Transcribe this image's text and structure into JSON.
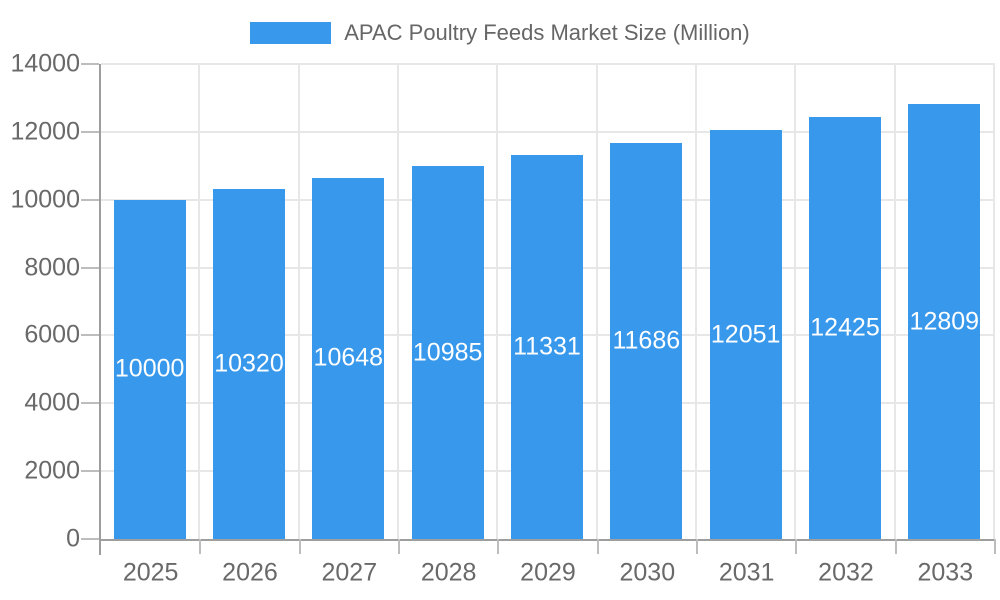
{
  "chart_data": {
    "type": "bar",
    "title": "APAC Poultry Feeds Market Size (Million)",
    "categories": [
      "2025",
      "2026",
      "2027",
      "2028",
      "2029",
      "2030",
      "2031",
      "2032",
      "2033"
    ],
    "series": [
      {
        "name": "APAC Poultry Feeds Market Size (Million)",
        "values": [
          10000,
          10320,
          10648,
          10985,
          11331,
          11686,
          12051,
          12425,
          12809
        ],
        "color": "#3898EC"
      }
    ],
    "xlabel": "",
    "ylabel": "",
    "ylim": [
      0,
      14000
    ],
    "yticks": [
      0,
      2000,
      4000,
      6000,
      8000,
      10000,
      12000,
      14000
    ],
    "grid": true,
    "legend_position": "top",
    "value_labels": true,
    "value_label_color": "#FFFFFF",
    "value_label_position": "inside-center"
  }
}
